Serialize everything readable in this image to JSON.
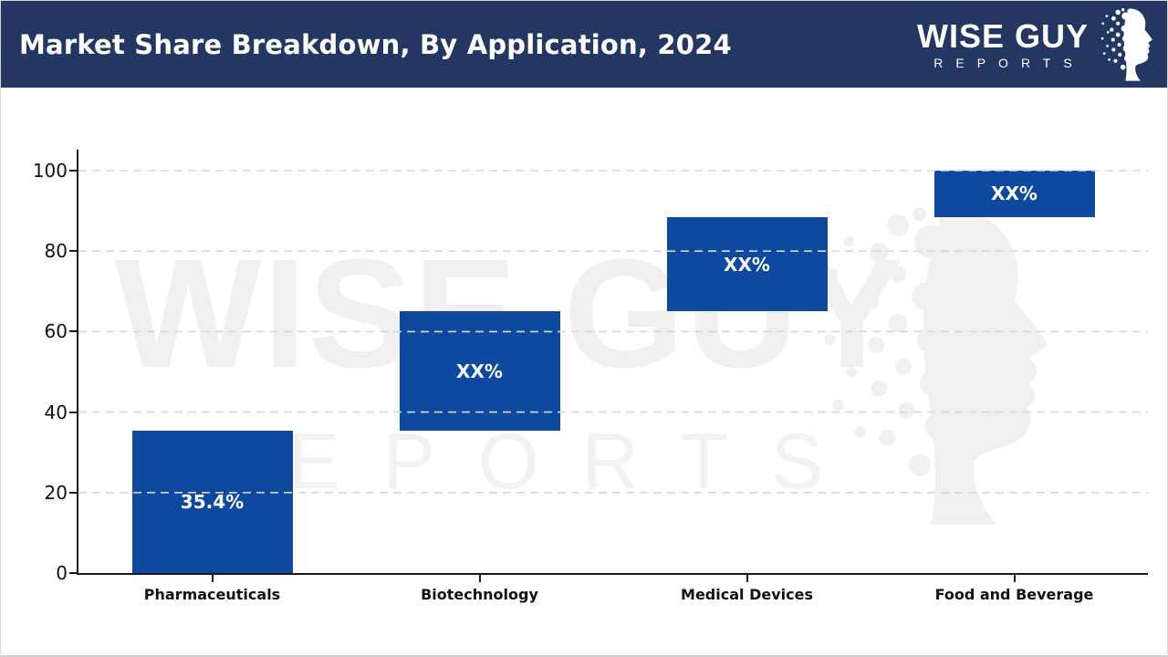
{
  "page": {
    "bg": "#ffffff",
    "border_color": "#d9d9d9"
  },
  "header": {
    "bg": "#243763",
    "title": "Market Share Breakdown, By Application, 2024",
    "logo": {
      "line1": "WISE GUY",
      "line2": "REPORTS"
    }
  },
  "watermark": {
    "line1": "WISE GUY",
    "line2": "REPORTS"
  },
  "chart_data": {
    "type": "bar",
    "subtype": "floating-waterfall",
    "title": "Market Share Breakdown, By Application, 2024",
    "categories": [
      "Pharmaceuticals",
      "Biotechnology",
      "Medical Devices",
      "Food and Beverage"
    ],
    "segments": [
      {
        "category": "Pharmaceuticals",
        "start": 0,
        "end": 35.4,
        "label": "35.4%"
      },
      {
        "category": "Biotechnology",
        "start": 35.4,
        "end": 65,
        "label": "XX%"
      },
      {
        "category": "Medical Devices",
        "start": 65,
        "end": 88.5,
        "label": "XX%"
      },
      {
        "category": "Food and Beverage",
        "start": 88.5,
        "end": 100,
        "label": "XX%"
      }
    ],
    "ylim": [
      0,
      100
    ],
    "yticks": [
      0,
      20,
      40,
      60,
      80,
      100
    ],
    "grid": "horizontal-dashed",
    "grid_above_bars": true,
    "grid_color": "#d8d8d8",
    "bar_color": "#0d4a9f",
    "bar_label_color": "#ffffff",
    "axis_color": "#1a1a1a",
    "tick_label_color": "#111111",
    "legend": "none"
  }
}
